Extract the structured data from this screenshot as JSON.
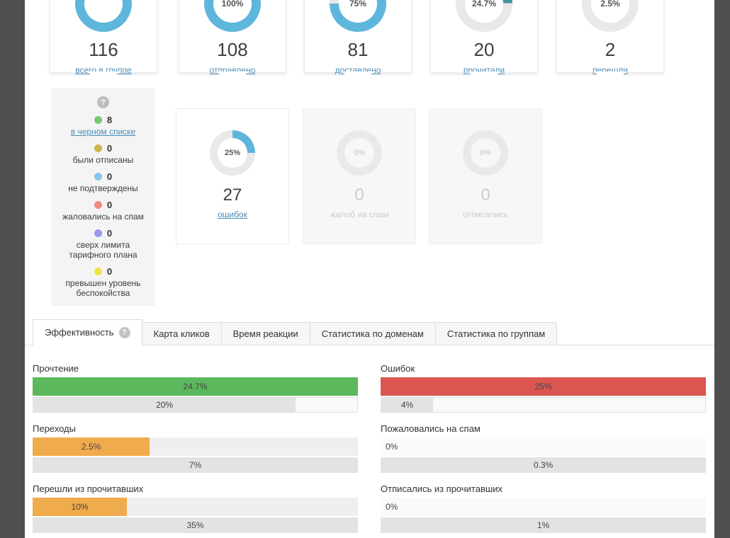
{
  "summary_cards": [
    {
      "key": "total-in-group",
      "percent_label": "",
      "percent": 100,
      "color": "#5fb6dd",
      "value": "116",
      "link": "всего в группе"
    },
    {
      "key": "sent",
      "percent_label": "100%",
      "percent": 100,
      "color": "#5fb6dd",
      "value": "108",
      "link": "отправлено"
    },
    {
      "key": "delivered",
      "percent_label": "75%",
      "percent": 75,
      "color": "#5fb6dd",
      "value": "81",
      "link": "доставлено"
    },
    {
      "key": "read",
      "percent_label": "24.7%",
      "percent": 24.7,
      "color": "#44939e",
      "value": "20",
      "link": "прочитали"
    },
    {
      "key": "clicked",
      "percent_label": "2.5%",
      "percent": 2.5,
      "color": "#44939e",
      "value": "2",
      "link": "перешли"
    }
  ],
  "legend": {
    "help_icon": "?",
    "items": [
      {
        "dot_color": "#76c776",
        "value": "8",
        "label": "в черном списке",
        "is_link": true
      },
      {
        "dot_color": "#cdb64b",
        "value": "0",
        "label": "были отписаны",
        "is_link": false
      },
      {
        "dot_color": "#85c6e8",
        "value": "0",
        "label": "не подтверждены",
        "is_link": false
      },
      {
        "dot_color": "#f08a80",
        "value": "0",
        "label": "жаловались на спам",
        "is_link": false
      },
      {
        "dot_color": "#9a9aec",
        "value": "0",
        "label": "сверх лимита тарифного плана",
        "is_link": false
      },
      {
        "dot_color": "#efe24a",
        "value": "0",
        "label": "превышен уровень беспокойства",
        "is_link": false
      }
    ]
  },
  "secondary_cards": [
    {
      "key": "errors",
      "percent_label": "25%",
      "percent": 25,
      "color": "#5fb6dd",
      "value": "27",
      "link": "ошибок",
      "disabled": false
    },
    {
      "key": "spam-complaints",
      "percent_label": "0%",
      "percent": 0,
      "color": "#5fb6dd",
      "value": "0",
      "link": "жалоб на спам",
      "disabled": true
    },
    {
      "key": "unsubscribed",
      "percent_label": "0%",
      "percent": 0,
      "color": "#5fb6dd",
      "value": "0",
      "link": "отписались",
      "disabled": true
    }
  ],
  "tabs": [
    {
      "key": "effectiveness",
      "label": "Эффективность",
      "active": true,
      "help_icon": "?"
    },
    {
      "key": "click-map",
      "label": "Карта кликов",
      "active": false
    },
    {
      "key": "reaction-time",
      "label": "Время реакции",
      "active": false
    },
    {
      "key": "domain-stats",
      "label": "Статистика по доменам",
      "active": false
    },
    {
      "key": "group-stats",
      "label": "Статистика по группам",
      "active": false
    }
  ],
  "effectiveness": {
    "columns": [
      {
        "rows": [
          {
            "key": "reading",
            "title": "Прочтение",
            "primary": {
              "label": "24.7%",
              "width_pct": 100,
              "color": "#5cb85c"
            },
            "average": {
              "label": "20%",
              "width_pct": 81
            }
          },
          {
            "key": "clicks",
            "title": "Переходы",
            "primary": {
              "label": "2.5%",
              "width_pct": 36,
              "color": "#f0ab4c"
            },
            "average": {
              "label": "7%",
              "width_pct": 100
            }
          },
          {
            "key": "clicked-from-read",
            "title": "Перешли из прочитавших",
            "primary": {
              "label": "10%",
              "width_pct": 29,
              "color": "#f0ab4c"
            },
            "average": {
              "label": "35%",
              "width_pct": 100
            }
          }
        ]
      },
      {
        "rows": [
          {
            "key": "errors",
            "title": "Ошибок",
            "primary": {
              "label": "25%",
              "width_pct": 100,
              "color": "#db5551"
            },
            "average": {
              "label": "4%",
              "width_pct": 16
            }
          },
          {
            "key": "spam-complained",
            "title": "Пожаловались на спам",
            "primary": {
              "label": "0%",
              "width_pct": 0,
              "color": null
            },
            "average": {
              "label": "0.3%",
              "width_pct": 100
            }
          },
          {
            "key": "unsub-from-read",
            "title": "Отписались из прочитавших",
            "primary": {
              "label": "0%",
              "width_pct": 0,
              "color": null
            },
            "average": {
              "label": "1%",
              "width_pct": 100
            }
          }
        ]
      }
    ]
  }
}
